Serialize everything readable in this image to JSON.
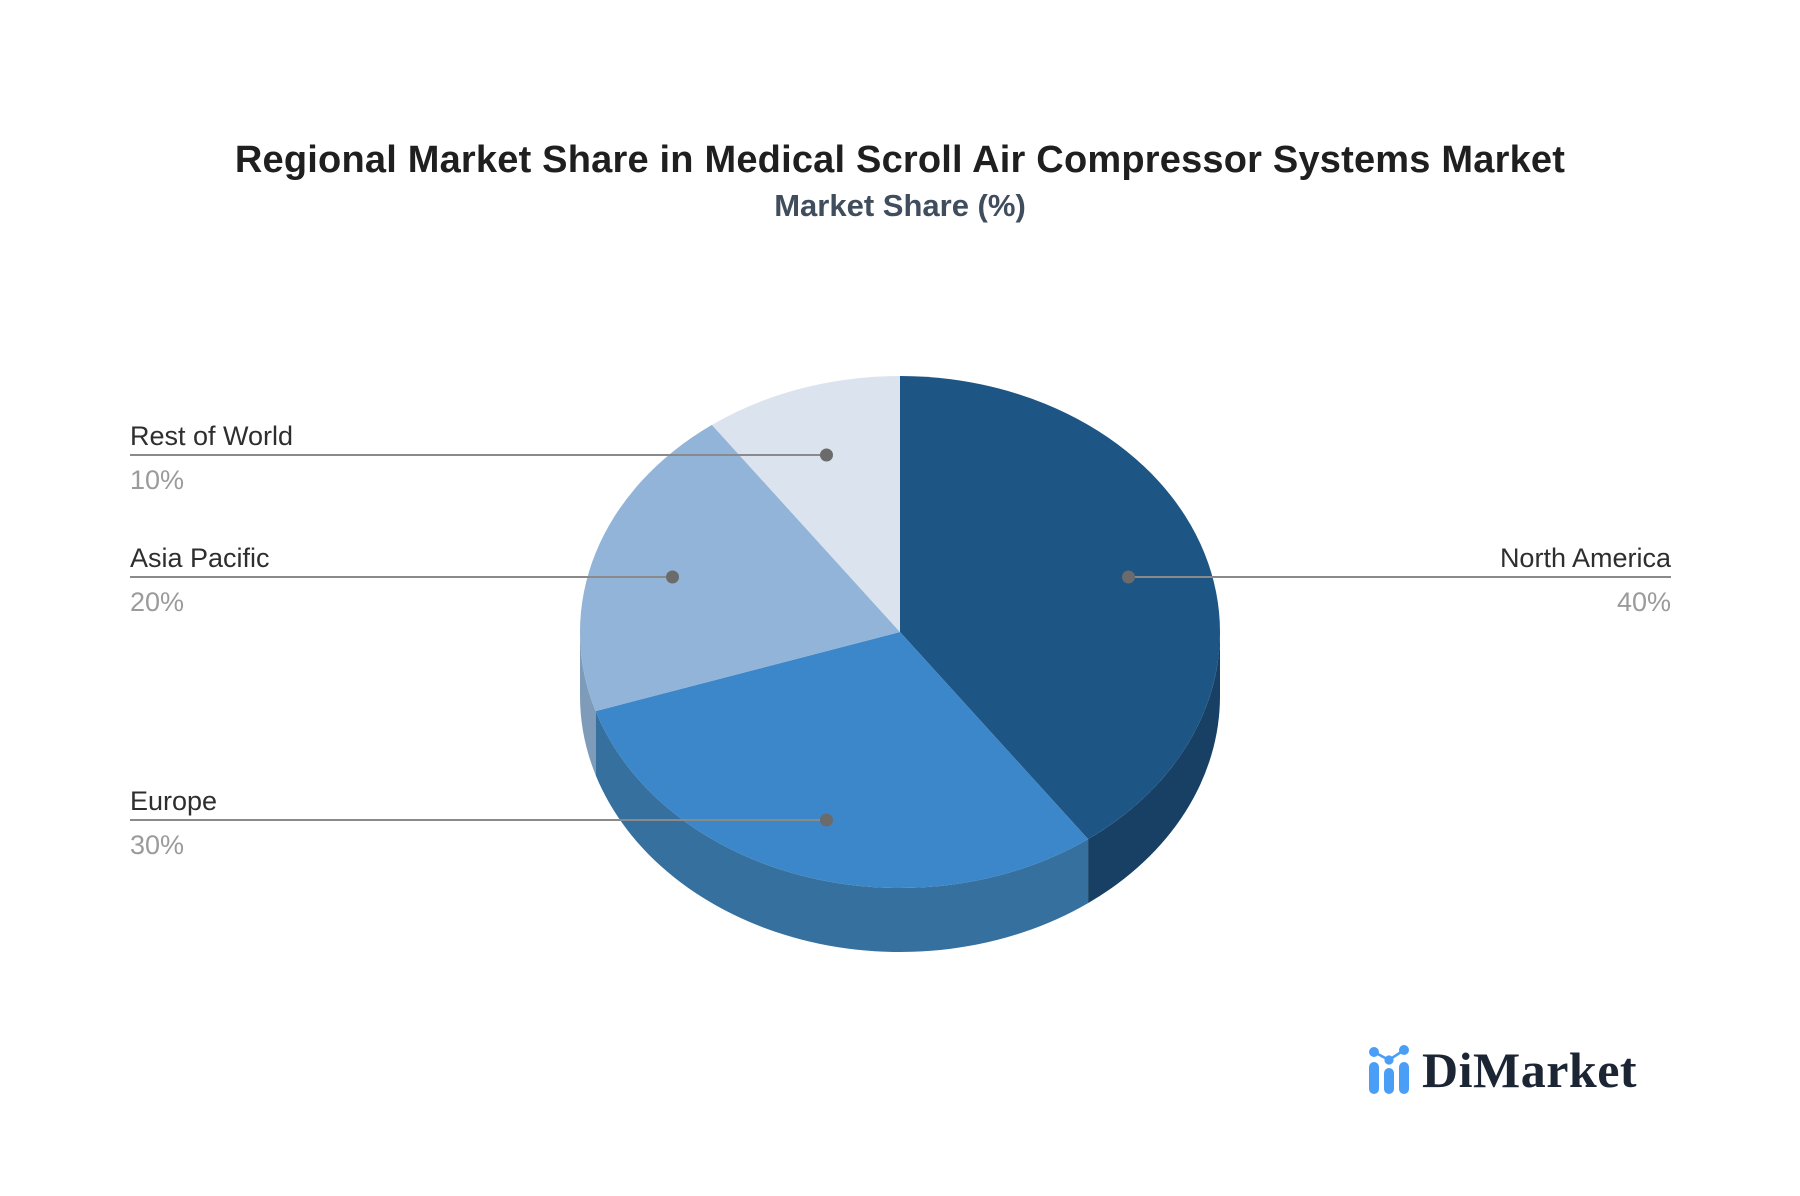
{
  "chart": {
    "title": "Regional Market Share in Medical Scroll Air Compressor Systems Market",
    "subtitle": "Market Share (%)"
  },
  "chart_data": {
    "type": "pie",
    "style": "3d",
    "title": "Regional Market Share in Medical Scroll Air Compressor Systems Market",
    "subtitle": "Market Share (%)",
    "unit": "%",
    "labels": [
      "North America",
      "Europe",
      "Asia Pacific",
      "Rest of World"
    ],
    "values": [
      40,
      30,
      20,
      10
    ],
    "value_labels": [
      "40%",
      "30%",
      "20%",
      "10%"
    ],
    "start_angle_deg": 0,
    "direction": "clockwise",
    "colors": [
      "#1d5585",
      "#3c87c9",
      "#92b4d8",
      "#dbe3ee"
    ],
    "side_colors": [
      "#174064",
      "#35709e",
      "#7e9cba",
      "#c3cede"
    ],
    "legend_position": "callout-labels",
    "leader_line_color": "#8a8a8a",
    "leader_dot_color": "#6b6b6b"
  },
  "callouts": {
    "rest_of_world": {
      "label": "Rest of World",
      "value": "10%"
    },
    "asia_pacific": {
      "label": "Asia Pacific",
      "value": "20%"
    },
    "europe": {
      "label": "Europe",
      "value": "30%"
    },
    "north_america": {
      "label": "North America",
      "value": "40%"
    }
  },
  "brand": {
    "text": "DiMarket",
    "icon": "bar-chart-logo-icon",
    "icon_color": "#4b9ef5",
    "text_color": "#1c2534"
  }
}
